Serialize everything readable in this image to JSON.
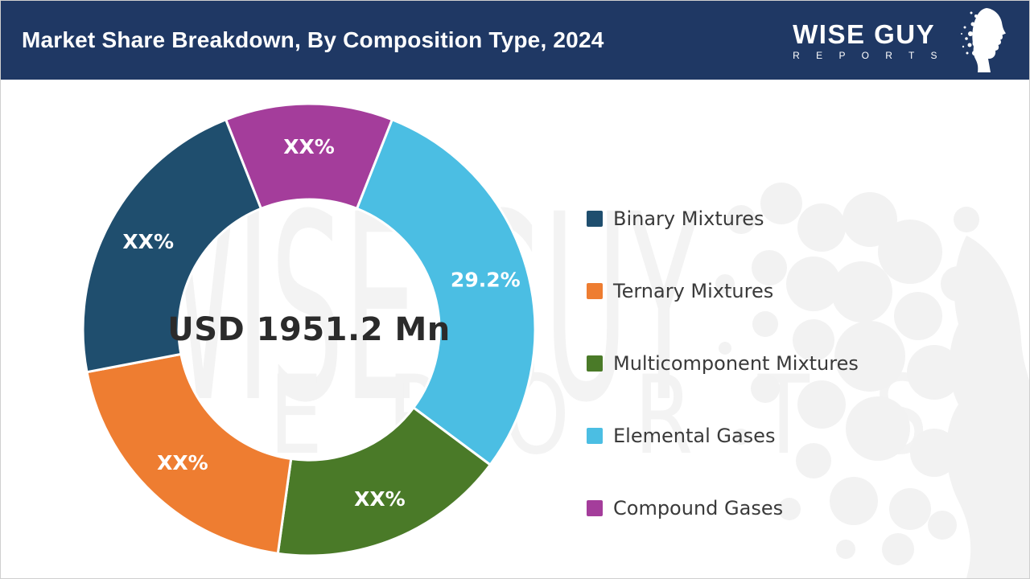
{
  "header": {
    "title": "Market Share Breakdown, By Composition Type, 2024",
    "bg_color": "#1F3864",
    "logo": {
      "line1": "WISE GUY",
      "line2": "R E P O R T S"
    }
  },
  "watermark": {
    "line1": "WISE GUY",
    "line2": "R E P O R T S"
  },
  "center_value": "USD 1951.2 Mn",
  "chart_data": {
    "type": "pie",
    "subtype": "donut",
    "title": "Market Share Breakdown, By Composition Type, 2024",
    "center_label": "USD 1951.2 Mn",
    "start_angle_deg": -21.6,
    "legend_position": "right",
    "slices": [
      {
        "name": "Compound Gases",
        "label": "XX%",
        "draw_pct": 12.0,
        "color": "#A43D9B"
      },
      {
        "name": "Elemental Gases",
        "label": "29.2%",
        "draw_pct": 29.2,
        "color": "#4BBEE3"
      },
      {
        "name": "Multicomponent Mixtures",
        "label": "XX%",
        "draw_pct": 17.0,
        "color": "#4A7A28"
      },
      {
        "name": "Ternary Mixtures",
        "label": "XX%",
        "draw_pct": 19.8,
        "color": "#EE7D31"
      },
      {
        "name": "Binary Mixtures",
        "label": "XX%",
        "draw_pct": 22.0,
        "color": "#1F4E6E"
      }
    ],
    "legend": [
      {
        "label": "Binary Mixtures",
        "color": "#1F4E6E"
      },
      {
        "label": "Ternary Mixtures",
        "color": "#EE7D31"
      },
      {
        "label": "Multicomponent Mixtures",
        "color": "#4A7A28"
      },
      {
        "label": "Elemental Gases",
        "color": "#4BBEE3"
      },
      {
        "label": "Compound Gases",
        "color": "#A43D9B"
      }
    ]
  }
}
